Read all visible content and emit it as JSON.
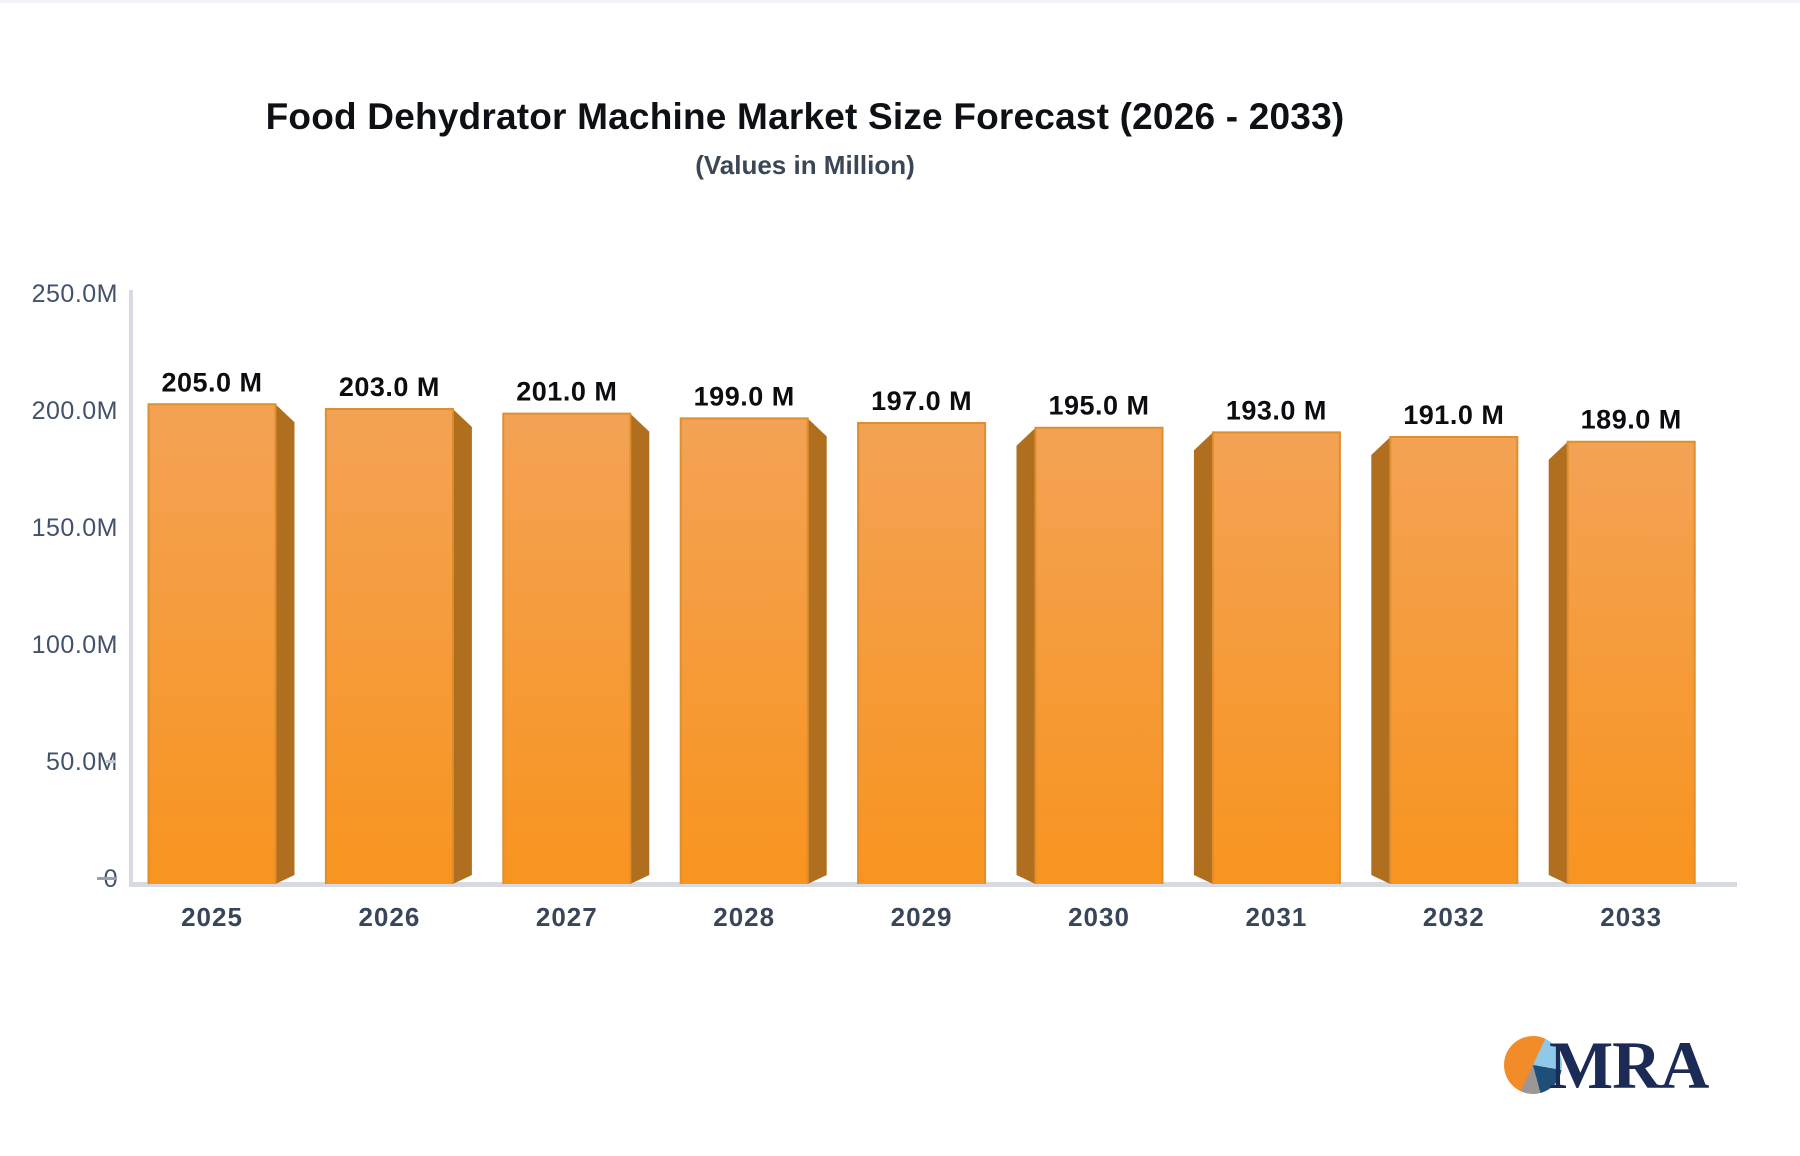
{
  "header": {
    "title": "Food Dehydrator Machine Market Size Forecast (2026 - 2033)",
    "subtitle": "(Values in Million)"
  },
  "logo": {
    "text": "MRA",
    "pie_colors": {
      "orange": "#f28c28",
      "sky_blue": "#8fc8e8",
      "navy": "#1f4e79",
      "gray": "#9b9794"
    },
    "text_color": "#1c2a56"
  },
  "chart_data": {
    "type": "bar",
    "title": "Food Dehydrator Machine Market Size Forecast (2026 - 2033)",
    "subtitle": "(Values in Million)",
    "xlabel": "",
    "ylabel": "",
    "categories": [
      "2025",
      "2026",
      "2027",
      "2028",
      "2029",
      "2030",
      "2031",
      "2032",
      "2033"
    ],
    "values": [
      205,
      203,
      201,
      199,
      197,
      195,
      193,
      191,
      189
    ],
    "data_labels": [
      "205.0 M",
      "203.0 M",
      "201.0 M",
      "199.0 M",
      "197.0 M",
      "195.0 M",
      "193.0 M",
      "191.0 M",
      "189.0 M"
    ],
    "unit": "Million",
    "ylim": [
      0,
      250
    ],
    "y_ticks": [
      {
        "value": 250,
        "label": "250.0M"
      },
      {
        "value": 200,
        "label": "200.0M"
      },
      {
        "value": 150,
        "label": "150.0M"
      },
      {
        "value": 100,
        "label": "100.0M"
      },
      {
        "value": 50,
        "label": "50.0M"
      },
      {
        "value": 0,
        "label": "0"
      }
    ],
    "grid": false,
    "legend": "none",
    "bar_style_3d": true,
    "colors": {
      "bar_face_top": "#f3a255",
      "bar_face_bottom": "#f8941f",
      "bar_face_stroke": "#df8e2e",
      "bar_side": "#b06e1f",
      "axis_line": "#d7dae0",
      "tick_dash": "#99a1ac",
      "y_tick_text": "#42526b",
      "x_tick_text": "#39465a",
      "value_label_text": "#0b0d10"
    }
  }
}
